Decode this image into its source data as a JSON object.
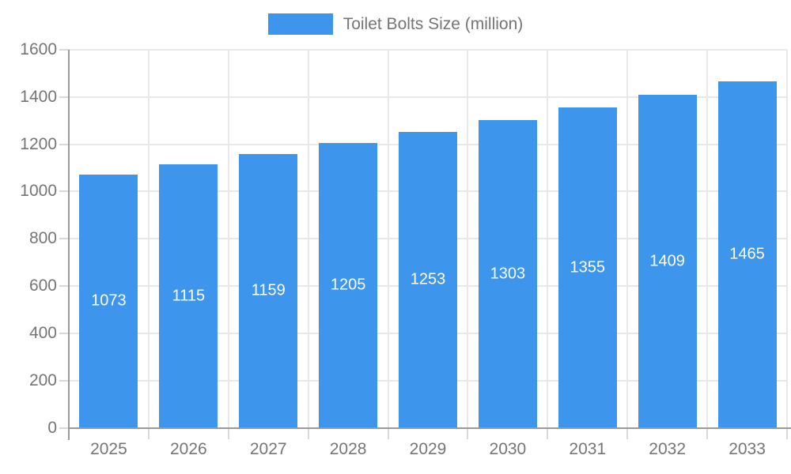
{
  "chart_data": {
    "type": "bar",
    "title": "",
    "legend_position": "top-center",
    "categories": [
      "2025",
      "2026",
      "2027",
      "2028",
      "2029",
      "2030",
      "2031",
      "2032",
      "2033"
    ],
    "series": [
      {
        "name": "Toilet Bolts Size (million)",
        "color": "#3E96EC",
        "values": [
          1073,
          1115,
          1159,
          1205,
          1253,
          1303,
          1355,
          1409,
          1465
        ]
      }
    ],
    "xlabel": "",
    "ylabel": "",
    "ylim": [
      0,
      1600
    ],
    "yticks": [
      0,
      200,
      400,
      600,
      800,
      1000,
      1200,
      1400,
      1600
    ],
    "grid": true,
    "value_labels_position": "inside-center",
    "value_label_color": "#FFFFFF"
  }
}
